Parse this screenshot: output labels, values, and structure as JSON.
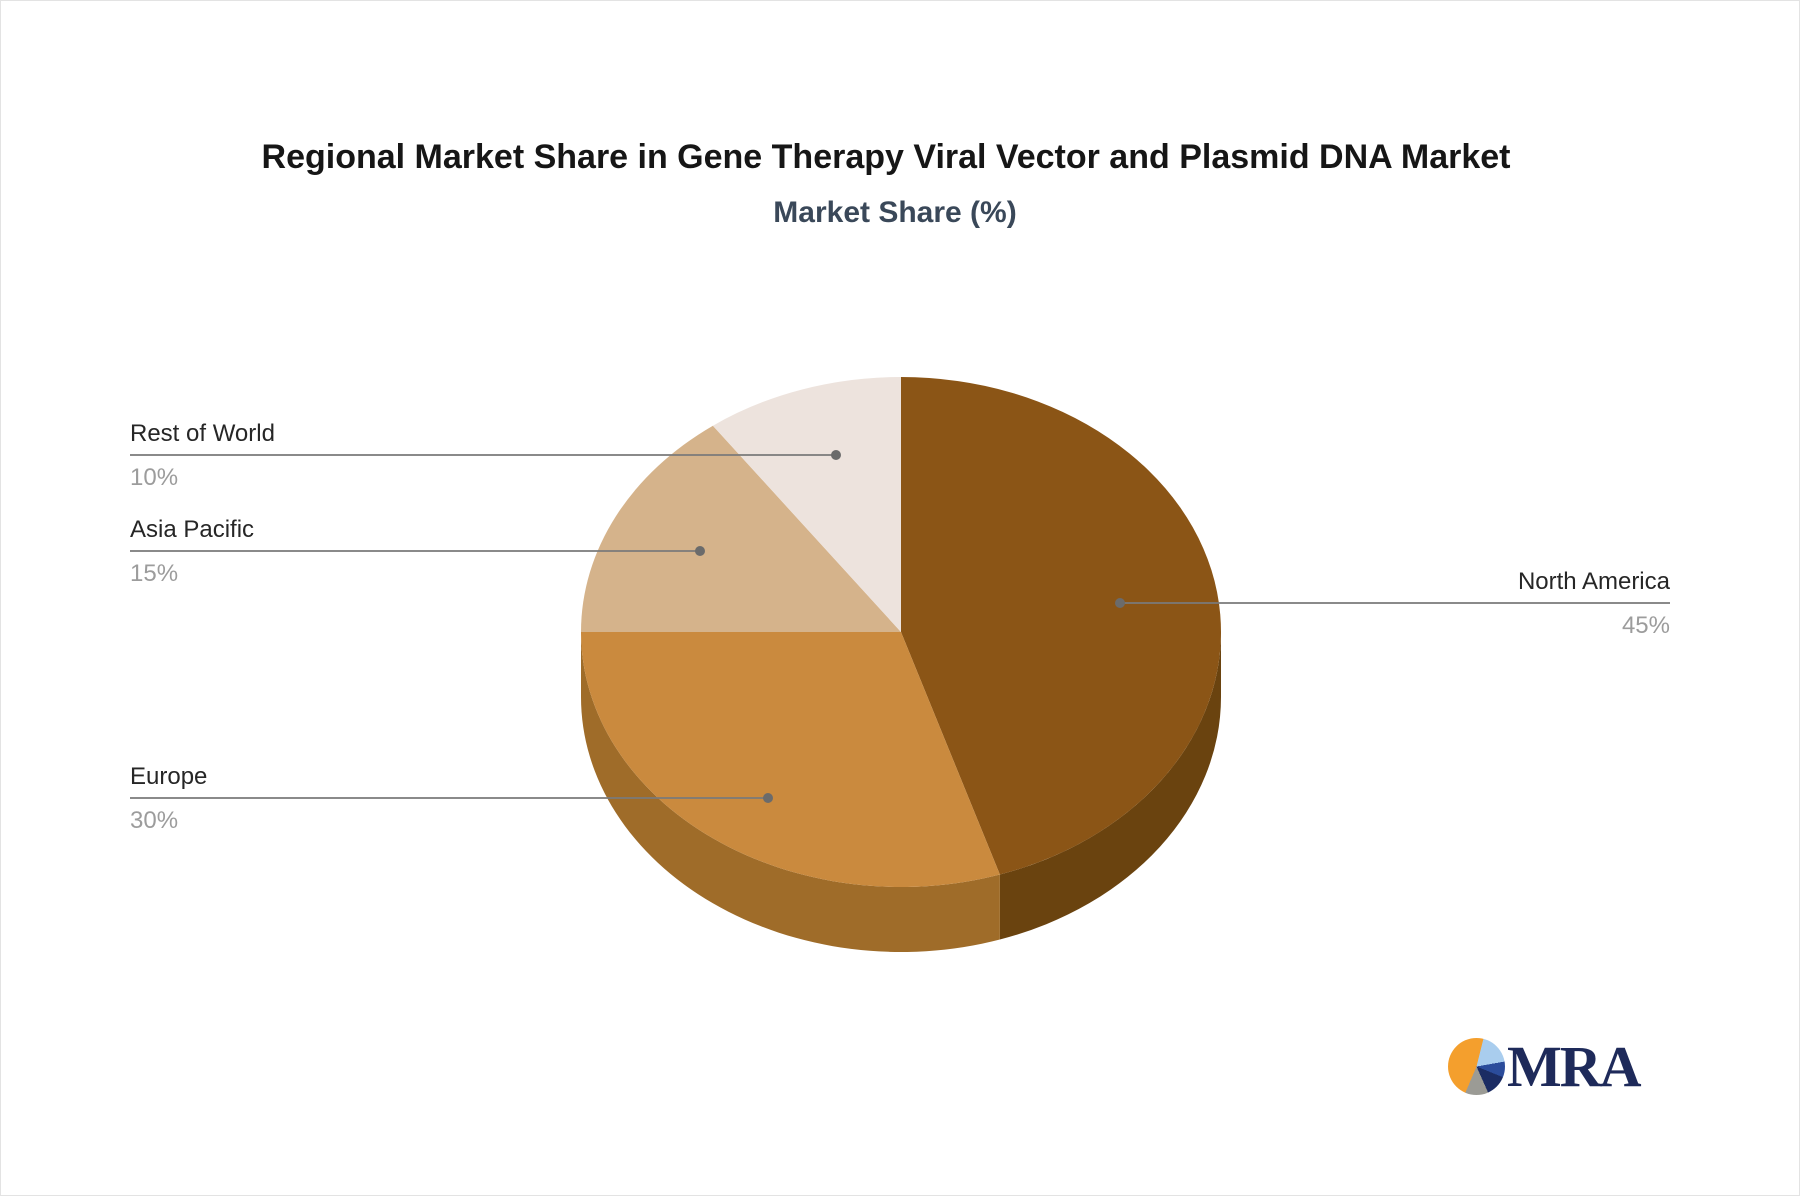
{
  "page": {
    "title": "Regional Market Share in Gene Therapy Viral Vector and Plasmid DNA Market",
    "subtitle": "Market Share (%)"
  },
  "chart_data": {
    "type": "pie",
    "title": "Regional Market Share in Gene Therapy Viral Vector and Plasmid DNA Market",
    "subtitle": "Market Share (%)",
    "unit": "%",
    "effect_3d": true,
    "start_angle_deg": 0,
    "direction": "clockwise",
    "legend_position": "none",
    "label_style": "leader-lines",
    "slices": [
      {
        "label": "North America",
        "value": 45,
        "value_label": "45%",
        "color": "#8B5516",
        "depth_color": "#6A430F",
        "label_side": "right"
      },
      {
        "label": "Europe",
        "value": 30,
        "value_label": "30%",
        "color": "#CA8A3E",
        "depth_color": "#9F6C29",
        "label_side": "left"
      },
      {
        "label": "Asia Pacific",
        "value": 15,
        "value_label": "15%",
        "color": "#D5B38B",
        "depth_color": "#B5976F",
        "label_side": "left"
      },
      {
        "label": "Rest of World",
        "value": 10,
        "value_label": "10%",
        "color": "#EDE3DD",
        "depth_color": "#D0C6C0",
        "label_side": "left"
      }
    ],
    "leader_line_color": "#7a7a7a",
    "leader_dot_color": "#6b6b6b",
    "label_text_color": "#262626",
    "value_text_color": "#9c9c9c"
  },
  "branding": {
    "logo_text": "MRA",
    "logo_colors": {
      "orange": "#F49F2D",
      "light_blue": "#A9CDEE",
      "blue": "#2B4C9B",
      "navy": "#1B2C63",
      "gray": "#9B9B95",
      "text": "#1E2A5A"
    }
  }
}
